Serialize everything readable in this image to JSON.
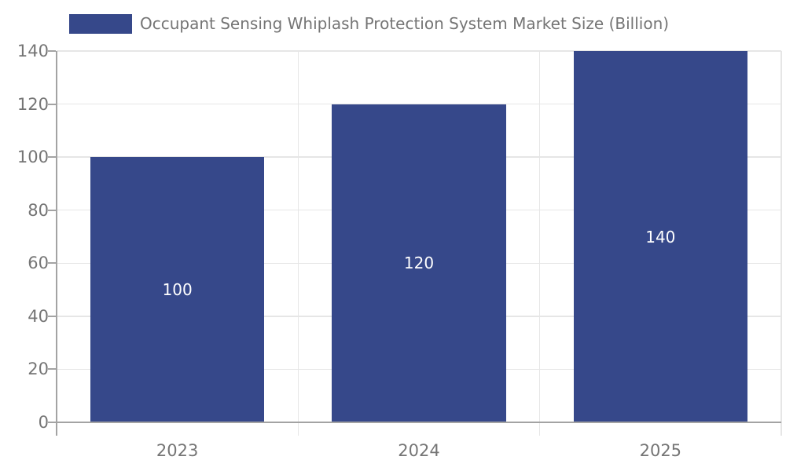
{
  "legend": {
    "label": "Occupant Sensing Whiplash Protection System Market Size (Billion)"
  },
  "chart_data": {
    "type": "bar",
    "title": "Occupant Sensing Whiplash Protection System Market Size (Billion)",
    "categories": [
      "2023",
      "2024",
      "2025"
    ],
    "values": [
      100,
      120,
      140
    ],
    "series": [
      {
        "name": "Occupant Sensing Whiplash Protection System Market Size (Billion)",
        "values": [
          100,
          120,
          140
        ]
      }
    ],
    "data_labels": [
      "100",
      "120",
      "140"
    ],
    "xlabel": "",
    "ylabel": "",
    "ylim": [
      0,
      140
    ],
    "yticks": [
      0,
      20,
      40,
      60,
      80,
      100,
      120,
      140
    ],
    "ytick_labels": [
      "0",
      "20",
      "40",
      "60",
      "80",
      "100",
      "120",
      "140"
    ],
    "grid": true,
    "legend_position": "top-left"
  },
  "colors": {
    "bar": "#36488a",
    "grid": "#e6e6e6",
    "axis": "#a3a3a3",
    "text": "#757575",
    "bar_label": "#ffffff",
    "background": "#ffffff"
  }
}
